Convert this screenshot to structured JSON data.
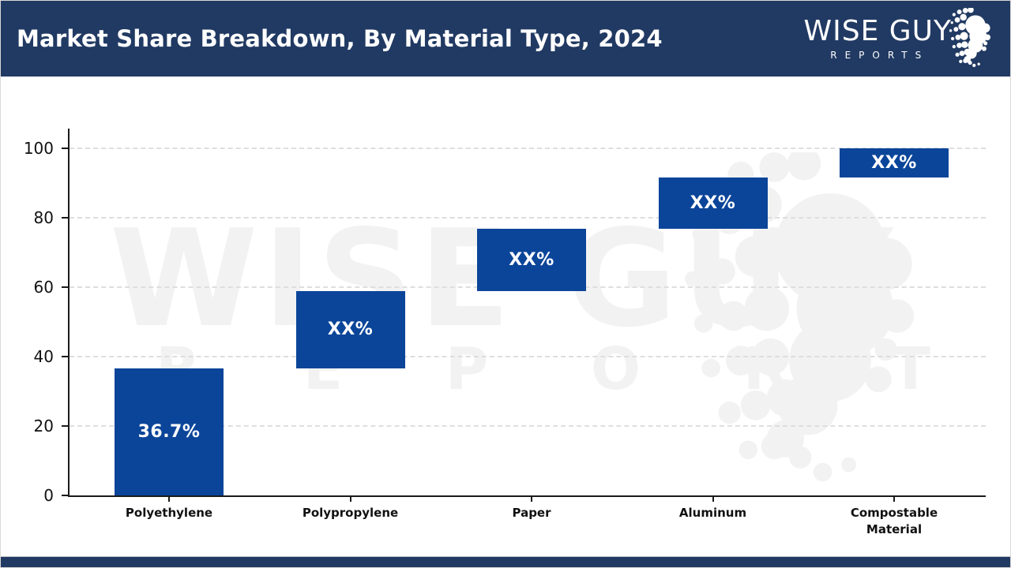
{
  "header": {
    "title": "Market Share Breakdown, By Material Type, 2024",
    "logo": {
      "line1": "WISE GUY",
      "line2": "REPORTS"
    }
  },
  "watermark": {
    "line1": "WISE GUY",
    "line2": "REPORTS"
  },
  "colors": {
    "header_bg": "#213a63",
    "bar": "#0b4599",
    "bar_label": "#ffffff",
    "gridline": "#dedede",
    "axis": "#1a1a1a",
    "watermark": "#f2f2f2"
  },
  "chart_data": {
    "type": "bar",
    "variant": "waterfall",
    "title": "Market Share Breakdown, By Material Type, 2024",
    "categories": [
      "Polyethylene",
      "Polypropylene",
      "Paper",
      "Aluminum",
      "Compostable Material"
    ],
    "bars": [
      {
        "category": "Polyethylene",
        "start": 0,
        "end": 36.7,
        "label": "36.7%"
      },
      {
        "category": "Polypropylene",
        "start": 36.7,
        "end": 58.8,
        "label": "XX%"
      },
      {
        "category": "Paper",
        "start": 58.8,
        "end": 76.9,
        "label": "XX%"
      },
      {
        "category": "Aluminum",
        "start": 76.9,
        "end": 91.5,
        "label": "XX%"
      },
      {
        "category": "Compostable Material",
        "start": 91.5,
        "end": 100,
        "label": "XX%"
      }
    ],
    "yticks": [
      0,
      20,
      40,
      60,
      80,
      100
    ],
    "ylim": [
      0,
      105.7
    ],
    "xlabel": "",
    "ylabel": "",
    "grid": "dashed-horizontal",
    "legend": "none"
  }
}
